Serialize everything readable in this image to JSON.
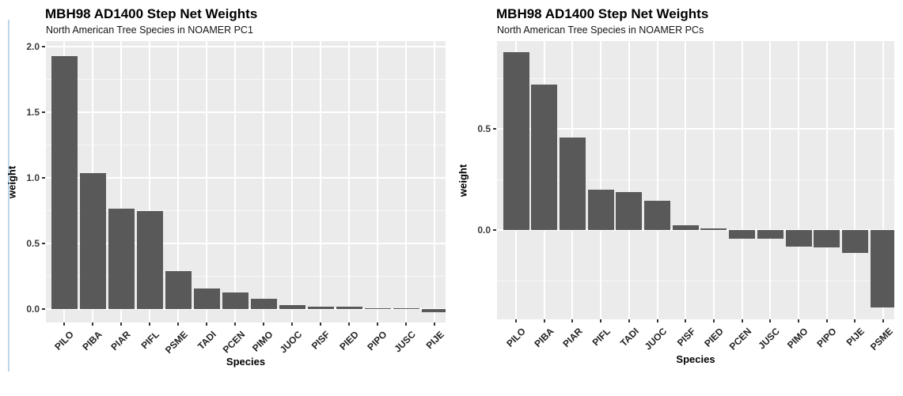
{
  "page": {
    "background_color": "#ffffff",
    "pane_border_color": "#bdd6ea"
  },
  "chart_data": [
    {
      "type": "bar",
      "title": "MBH98 AD1400 Step Net Weights",
      "subtitle": "North American Tree Species in NOAMER PC1",
      "xlabel": "Species",
      "ylabel": "weight",
      "categories": [
        "PILO",
        "PIBA",
        "PIAR",
        "PIFL",
        "PSME",
        "TADI",
        "PCEN",
        "PIMO",
        "JUOC",
        "PISF",
        "PIED",
        "PIPO",
        "JUSC",
        "PIJE"
      ],
      "values": [
        1.93,
        1.04,
        0.77,
        0.75,
        0.29,
        0.16,
        0.13,
        0.08,
        0.03,
        0.02,
        0.02,
        0.01,
        0.01,
        -0.02
      ],
      "ylim": [
        -0.1,
        2.045
      ],
      "yticks": [
        0.0,
        0.5,
        1.0,
        1.5,
        2.0
      ],
      "ytick_labels": [
        "0.0",
        "0.5",
        "1.0",
        "1.5",
        "2.0"
      ],
      "yminor": [
        0.25,
        0.75,
        1.25,
        1.75
      ],
      "grid": true,
      "legend": "none",
      "bar_color": "#595959",
      "panel_color": "#EBEBEB"
    },
    {
      "type": "bar",
      "title": "MBH98 AD1400 Step Net Weights",
      "subtitle": "North American Tree Species in NOAMER PCs",
      "xlabel": "Species",
      "ylabel": "weight",
      "categories": [
        "PILO",
        "PIBA",
        "PIAR",
        "PIFL",
        "TADI",
        "JUOC",
        "PISF",
        "PIED",
        "PCEN",
        "JUSC",
        "PIMO",
        "PIPO",
        "PIJE",
        "PSME"
      ],
      "values": [
        0.88,
        0.72,
        0.46,
        0.2,
        0.19,
        0.145,
        0.025,
        0.01,
        -0.04,
        -0.04,
        -0.08,
        -0.085,
        -0.11,
        -0.38
      ],
      "ylim": [
        -0.44,
        0.935
      ],
      "yticks": [
        0.0,
        0.5
      ],
      "ytick_labels": [
        "0.0",
        "0.5"
      ],
      "yminor": [
        -0.25,
        0.25,
        0.75
      ],
      "grid": true,
      "legend": "none",
      "bar_color": "#595959",
      "panel_color": "#EBEBEB"
    }
  ]
}
